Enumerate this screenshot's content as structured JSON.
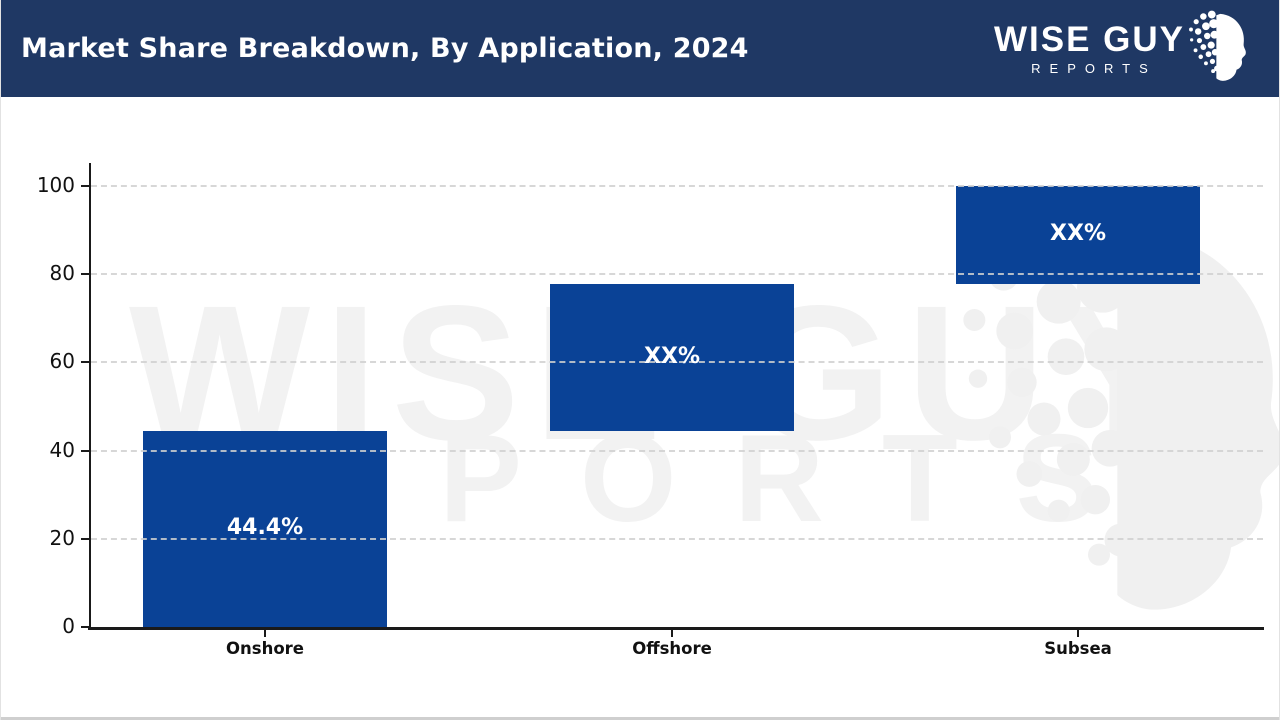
{
  "header": {
    "title": "Market Share Breakdown, By Application, 2024",
    "logo": {
      "line1": "WISE GUY",
      "line2": "REPORTS"
    }
  },
  "watermark": {
    "line1": "WISE GUY",
    "line2": "REPORTS"
  },
  "colors": {
    "header_bg": "#1f3864",
    "bar_blue": "#0a4296",
    "grid_gray": "#d0d0d0",
    "watermark_gray": "#f2f2f2",
    "bottom_border": "#cfcfcf"
  },
  "chart_data": {
    "type": "bar",
    "subtype": "floating-waterfall",
    "title": "Market Share Breakdown, By Application, 2024",
    "categories": [
      "Onshore",
      "Offshore",
      "Subsea"
    ],
    "values": [
      44.4,
      33.4,
      22.2
    ],
    "segment_start": [
      0,
      44.4,
      77.8
    ],
    "segment_end": [
      44.4,
      77.8,
      100
    ],
    "bar_labels": [
      "44.4%",
      "XX%",
      "XX%"
    ],
    "yticks": [
      0,
      20,
      40,
      60,
      80,
      100
    ],
    "ylim": [
      0,
      105
    ],
    "xlabel": "",
    "ylabel": "",
    "grid": "horizontal-dashed",
    "legend": "none",
    "bar_color": "#0a4296",
    "label_color": "#ffffff"
  }
}
